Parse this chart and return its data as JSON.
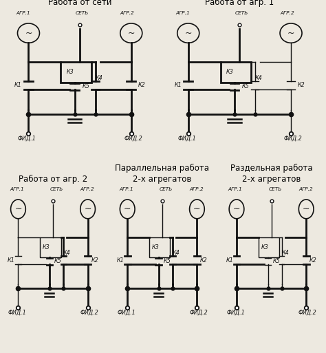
{
  "bg": "#ede9e0",
  "lc": "#111111",
  "blw": 2.0,
  "tlw": 1.0,
  "fst": 8.5,
  "fsl": 5.8,
  "modes": [
    {
      "title": "Работа от сети",
      "k1": true,
      "k2": true,
      "k3": true,
      "k4": true,
      "k5": true
    },
    {
      "title": "Работа от агр. 1",
      "k1": true,
      "k2": false,
      "k3": true,
      "k4": false,
      "k5": true
    },
    {
      "title": "Работа от агр. 2",
      "k1": false,
      "k2": true,
      "k3": false,
      "k4": true,
      "k5": true
    },
    {
      "title": "Параллельная работа\n2-х агрегатов",
      "k1": true,
      "k2": true,
      "k3": false,
      "k4": true,
      "k5": true
    },
    {
      "title": "Раздельная работа\n2-х агрегатов",
      "k1": true,
      "k2": true,
      "k3": false,
      "k4": false,
      "k5": false
    }
  ]
}
